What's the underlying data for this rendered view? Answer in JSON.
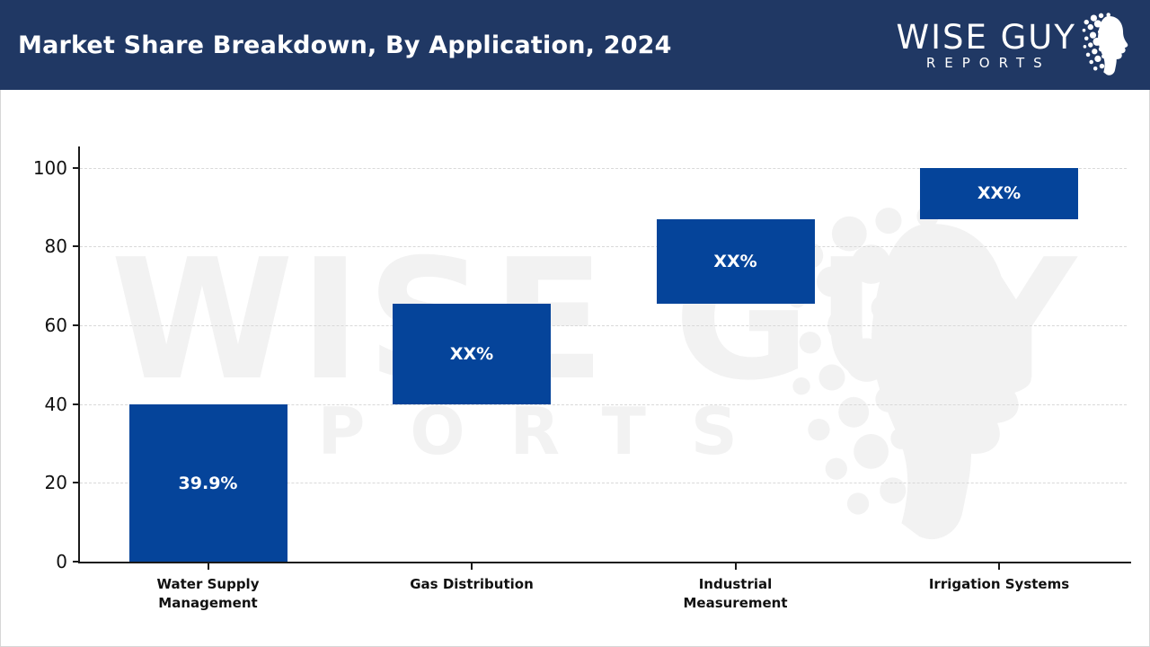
{
  "header": {
    "title": "Market Share Breakdown, By Application, 2024",
    "logo": {
      "line1": "WISE GUY",
      "line2": "REPORTS"
    }
  },
  "watermark": {
    "line1": "WISE GUY",
    "line2": "REPORTS"
  },
  "colors": {
    "header_bg": "#203864",
    "title_text": "#ffffff",
    "bar": "#05449a",
    "bar_label": "#ffffff",
    "grid": "#d9d9d9",
    "axis": "#1a1a1a",
    "tick_label": "#111111",
    "watermark": "#f2f2f2",
    "frame_border": "#d6d6d6"
  },
  "chart_data": {
    "type": "bar",
    "subtype": "floating-waterfall",
    "title": "Market Share Breakdown, By Application, 2024",
    "categories": [
      {
        "name": "Water Supply Management",
        "lines": [
          "Water Supply",
          "Management"
        ]
      },
      {
        "name": "Gas Distribution",
        "lines": [
          "Gas Distribution"
        ]
      },
      {
        "name": "Industrial Measurement",
        "lines": [
          "Industrial",
          "Measurement"
        ]
      },
      {
        "name": "Irrigation Systems",
        "lines": [
          "Irrigation Systems"
        ]
      }
    ],
    "segments": [
      {
        "from": 0,
        "to": 39.9,
        "label": "39.9%"
      },
      {
        "from": 39.9,
        "to": 65.5,
        "label": "XX%"
      },
      {
        "from": 65.5,
        "to": 87.0,
        "label": "XX%"
      },
      {
        "from": 87.0,
        "to": 99.8,
        "label": "XX%"
      }
    ],
    "xlabel": "",
    "ylabel": "",
    "ylim": [
      0,
      100
    ],
    "yticks": [
      0,
      20,
      40,
      60,
      80,
      100
    ],
    "grid": "horizontal-dashed",
    "legend": "none",
    "bar_color": "#05449a"
  }
}
